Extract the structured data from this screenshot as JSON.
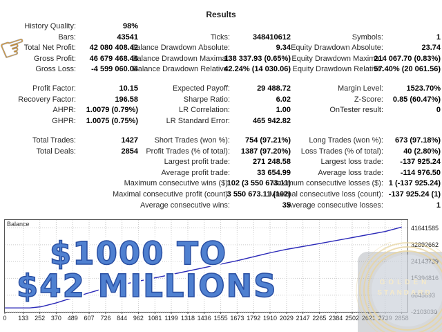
{
  "title": "Results",
  "pointer": {
    "glyph": "☞"
  },
  "stats": {
    "blocks": [
      {
        "rows": [
          [
            "History Quality:",
            "98%",
            "",
            "",
            "",
            ""
          ],
          [
            "Bars:",
            "43541",
            "Ticks:",
            "348410612",
            "Symbols:",
            "1"
          ],
          [
            "Total Net Profit:",
            "42 080 408.42",
            "Balance Drawdown Absolute:",
            "9.34",
            "Equity Drawdown Absolute:",
            "23.74"
          ],
          [
            "Gross Profit:",
            "46 679 468.46",
            "Balance Drawdown Maximal:",
            "138 337.93 (0.65%)",
            "Equity Drawdown Maximal:",
            "214 067.70 (0.83%)"
          ],
          [
            "Gross Loss:",
            "-4 599 060.04",
            "Balance Drawdown Relative:",
            "42.24% (14 030.06)",
            "Equity Drawdown Relative:",
            "57.40% (20 061.56)"
          ]
        ]
      },
      {
        "rows": [
          [
            "Profit Factor:",
            "10.15",
            "Expected Payoff:",
            "29 488.72",
            "Margin Level:",
            "1523.70%"
          ],
          [
            "Recovery Factor:",
            "196.58",
            "Sharpe Ratio:",
            "6.02",
            "Z-Score:",
            "0.85 (60.47%)"
          ],
          [
            "AHPR:",
            "1.0079 (0.79%)",
            "LR Correlation:",
            "1.00",
            "OnTester result:",
            "0"
          ],
          [
            "GHPR:",
            "1.0075 (0.75%)",
            "LR Standard Error:",
            "465 942.82",
            "",
            ""
          ]
        ]
      },
      {
        "rows": [
          [
            "Total Trades:",
            "1427",
            "Short Trades (won %):",
            "754 (97.21%)",
            "Long Trades (won %):",
            "673 (97.18%)"
          ],
          [
            "Total Deals:",
            "2854",
            "Profit Trades (% of total):",
            "1387 (97.20%)",
            "Loss Trades (% of total):",
            "40 (2.80%)"
          ],
          [
            "",
            "",
            "Largest profit trade:",
            "271 248.58",
            "Largest loss trade:",
            "-137 925.24"
          ],
          [
            "",
            "",
            "Average profit trade:",
            "33 654.99",
            "Average loss trade:",
            "-114 976.50"
          ],
          [
            "",
            "",
            "Maximum consecutive wins ($):",
            "102 (3 550 673.11)",
            "Maximum consecutive losses ($):",
            "1 (-137 925.24)"
          ],
          [
            "",
            "",
            "Maximal consecutive profit (count):",
            "3 550 673.11 (102)",
            "Maximal consecutive loss (count):",
            "-137 925.24 (1)"
          ],
          [
            "",
            "",
            "Average consecutive wins:",
            "35",
            "Average consecutive losses:",
            "1"
          ]
        ]
      }
    ]
  },
  "chart_data": {
    "type": "line",
    "title": "Balance",
    "x_ticks": [
      0,
      133,
      252,
      370,
      489,
      607,
      726,
      844,
      962,
      1081,
      1199,
      1318,
      1436,
      1555,
      1673,
      1792,
      1910,
      2029,
      2147,
      2265,
      2384,
      2502,
      2621,
      2739,
      2858
    ],
    "y_ticks": [
      41641585,
      32892662,
      24143739,
      15394816,
      6645893,
      -2103030
    ],
    "xlim": [
      0,
      2880
    ],
    "ylim": [
      -2103030,
      45800000
    ],
    "grid": true,
    "legend_position": "none",
    "line_color": "#2b29b8",
    "grid_color": "#c9c9c9",
    "border_color": "#555555",
    "series": [
      {
        "name": "Balance",
        "points": [
          [
            0,
            1000
          ],
          [
            180,
            1000
          ],
          [
            260,
            600000
          ],
          [
            370,
            2600000
          ],
          [
            489,
            5300000
          ],
          [
            726,
            10400000
          ],
          [
            962,
            13900000
          ],
          [
            1199,
            17400000
          ],
          [
            1436,
            21000000
          ],
          [
            1673,
            24600000
          ],
          [
            1910,
            28700000
          ],
          [
            2029,
            30500000
          ],
          [
            2265,
            33500000
          ],
          [
            2502,
            36600000
          ],
          [
            2739,
            39800000
          ],
          [
            2858,
            42081408
          ]
        ]
      }
    ]
  },
  "overlay": {
    "line1": "$1000 TO",
    "line2": "$42 MILLIONS",
    "fill": "#4f80d0",
    "outline": "#2a4fa2"
  },
  "watermark": {
    "line1": "GOLDEN",
    "line2": "STANDARD",
    "ring_color": "#e8d5a0"
  }
}
